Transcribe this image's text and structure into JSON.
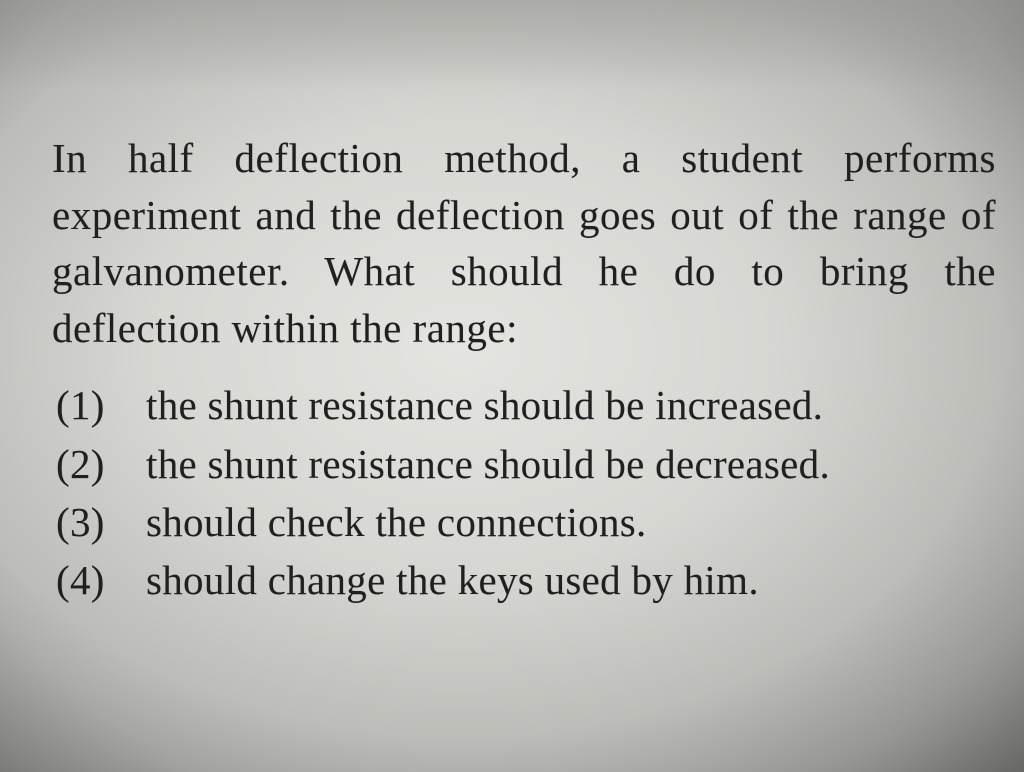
{
  "page": {
    "background_center": "#e4e5e0",
    "background_edge": "#555650",
    "text_color": "#202020",
    "font_family": "Georgia, 'Times New Roman', serif",
    "stem_fontsize_pt": 31,
    "option_fontsize_pt": 31,
    "line_height": 1.4
  },
  "question": {
    "stem": "In half deflection method, a student performs experiment and the deflection goes out of the range of galvanometer. What should he do to bring the deflection within the range:",
    "options": [
      {
        "num": "(1)",
        "text": "the shunt resistance should be increased."
      },
      {
        "num": "(2)",
        "text": "the shunt resistance should be decreased."
      },
      {
        "num": "(3)",
        "text": "should check the connections."
      },
      {
        "num": "(4)",
        "text": "should change the keys used by him."
      }
    ]
  }
}
